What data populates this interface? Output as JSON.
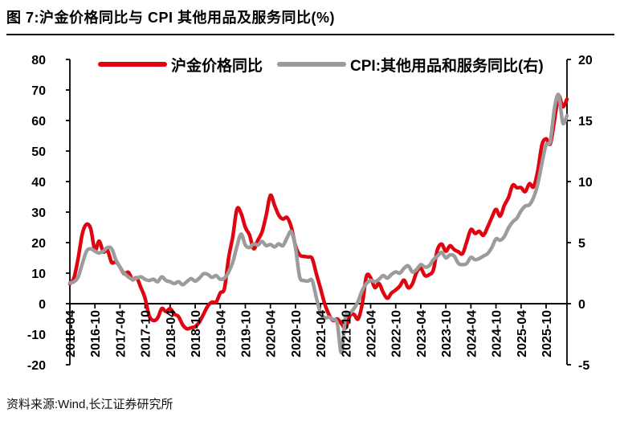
{
  "header": {
    "title": "图 7:沪金价格同比与 CPI 其他用品及服务同比(%)"
  },
  "legend": [
    {
      "label": "沪金价格同比",
      "color": "#e00410"
    },
    {
      "label": "CPI:其他用品和服务同比(右)",
      "color": "#9c9c9c"
    }
  ],
  "footer": {
    "source": "资料来源:Wind,长江证券研究所"
  },
  "chart_data": {
    "type": "line",
    "title": "图 7:沪金价格同比与 CPI 其他用品及服务同比(%)",
    "grid": false,
    "legend_position": "top",
    "x_tick_step": 6,
    "y_left": {
      "min": -20,
      "max": 80,
      "ticks": [
        80,
        70,
        60,
        50,
        40,
        30,
        20,
        10,
        0,
        -10,
        -20
      ]
    },
    "y_right": {
      "min": -5,
      "max": 20,
      "ticks": [
        20,
        15,
        10,
        5,
        0,
        -5
      ]
    },
    "categories": [
      "2016-04",
      "2016-05",
      "2016-06",
      "2016-07",
      "2016-08",
      "2016-09",
      "2016-10",
      "2016-11",
      "2016-12",
      "2017-01",
      "2017-02",
      "2017-03",
      "2017-04",
      "2017-05",
      "2017-06",
      "2017-07",
      "2017-08",
      "2017-09",
      "2017-10",
      "2017-11",
      "2017-12",
      "2018-01",
      "2018-02",
      "2018-03",
      "2018-04",
      "2018-05",
      "2018-06",
      "2018-07",
      "2018-08",
      "2018-09",
      "2018-10",
      "2018-11",
      "2018-12",
      "2019-01",
      "2019-02",
      "2019-03",
      "2019-04",
      "2019-05",
      "2019-06",
      "2019-07",
      "2019-08",
      "2019-09",
      "2019-10",
      "2019-11",
      "2019-12",
      "2020-01",
      "2020-02",
      "2020-03",
      "2020-04",
      "2020-05",
      "2020-06",
      "2020-07",
      "2020-08",
      "2020-09",
      "2020-10",
      "2020-11",
      "2020-12",
      "2021-01",
      "2021-02",
      "2021-03",
      "2021-04",
      "2021-05",
      "2021-06",
      "2021-07",
      "2021-08",
      "2021-09",
      "2021-10",
      "2021-11",
      "2021-12",
      "2022-01",
      "2022-02",
      "2022-03",
      "2022-04",
      "2022-05",
      "2022-06",
      "2022-07",
      "2022-08",
      "2022-09",
      "2022-10",
      "2022-11",
      "2022-12",
      "2023-01",
      "2023-02",
      "2023-03",
      "2023-04",
      "2023-05",
      "2023-06",
      "2023-07",
      "2023-08",
      "2023-09",
      "2023-10",
      "2023-11",
      "2023-12",
      "2024-01",
      "2024-02",
      "2024-03",
      "2024-04",
      "2024-05",
      "2024-06",
      "2024-07",
      "2024-08",
      "2024-09",
      "2024-10",
      "2024-11",
      "2024-12",
      "2025-01",
      "2025-02",
      "2025-03",
      "2025-04",
      "2025-05",
      "2025-06",
      "2025-07",
      "2025-08",
      "2025-09",
      "2025-10",
      "2025-11",
      "2025-12",
      "2026-01",
      "2026-02",
      "2026-03"
    ],
    "series": [
      {
        "name": "沪金价格同比",
        "axis": "left",
        "color": "#e00410",
        "values": [
          6.5,
          8.5,
          15,
          23,
          26,
          24.5,
          17.5,
          20.5,
          17,
          17.5,
          13.5,
          13.7,
          12,
          9.8,
          10.3,
          7.9,
          8.4,
          5.3,
          1.8,
          -4,
          -5.5,
          -4.7,
          -1.6,
          -2.6,
          -1.6,
          -3.4,
          -4.2,
          -6.9,
          -8.2,
          -7.9,
          -7.5,
          -6,
          -3.4,
          -0.8,
          0.5,
          0.5,
          3.5,
          5,
          15,
          22,
          31,
          29.5,
          25,
          22.5,
          18,
          20.8,
          23.5,
          29,
          35.5,
          32.2,
          29,
          27.7,
          28.2,
          25.1,
          19,
          16,
          15.5,
          15.3,
          14.8,
          9.8,
          5,
          0,
          -3.5,
          -5.5,
          -5,
          -6.5,
          -8,
          -4,
          -3.5,
          -5,
          0,
          9,
          8.5,
          5.3,
          6.6,
          3.7,
          1.8,
          3.5,
          4.5,
          5.8,
          7.7,
          5.2,
          6.5,
          10.3,
          11.6,
          9.2,
          9.5,
          11,
          17.7,
          19.5,
          17.2,
          19,
          17.7,
          17,
          16.4,
          20.3,
          24.3,
          23,
          23.7,
          22.4,
          25.1,
          28.2,
          30.9,
          28.7,
          32.2,
          34.8,
          38.8,
          38,
          38,
          36.7,
          39.3,
          38.3,
          43.5,
          52,
          54,
          52.4,
          60,
          68,
          64.5,
          67
        ]
      },
      {
        "name": "CPI:其他用品和服务同比(右)",
        "axis": "right",
        "color": "#9c9c9c",
        "values": [
          1.7,
          1.8,
          2.2,
          3.3,
          4.3,
          4.5,
          4.3,
          4.15,
          4.3,
          4.6,
          4.5,
          3.6,
          3.0,
          2.5,
          2.2,
          2.0,
          2.1,
          2.2,
          2.0,
          1.9,
          2.0,
          1.8,
          2.2,
          1.9,
          1.8,
          1.65,
          1.8,
          1.55,
          1.8,
          2.05,
          1.85,
          2.1,
          2.45,
          2.4,
          2.15,
          2.3,
          2.0,
          2.1,
          2.6,
          3.4,
          4.7,
          5.7,
          4.8,
          4.6,
          4.9,
          4.8,
          5.1,
          4.75,
          4.85,
          4.65,
          4.9,
          4.75,
          5.4,
          5.9,
          4.6,
          2.2,
          1.9,
          1.85,
          1.9,
          0.5,
          -0.75,
          -1.15,
          -1.1,
          -1.3,
          -1.6,
          -4.0,
          -1.0,
          -0.8,
          -0.4,
          0.2,
          1.1,
          1.65,
          1.9,
          1.8,
          2.0,
          2.3,
          2.1,
          2.4,
          2.6,
          2.5,
          2.9,
          3.1,
          2.6,
          2.8,
          3.2,
          3.0,
          3.1,
          3.6,
          3.9,
          4.2,
          3.75,
          4.0,
          3.9,
          3.3,
          3.2,
          3.3,
          3.8,
          3.6,
          3.7,
          3.9,
          4.1,
          4.6,
          5.3,
          5.2,
          5.5,
          6.2,
          6.7,
          7.0,
          7.6,
          8.0,
          8.1,
          8.7,
          9.8,
          11.5,
          13.0,
          13.3,
          16.0,
          17.1,
          14.8,
          15.4
        ]
      }
    ]
  }
}
